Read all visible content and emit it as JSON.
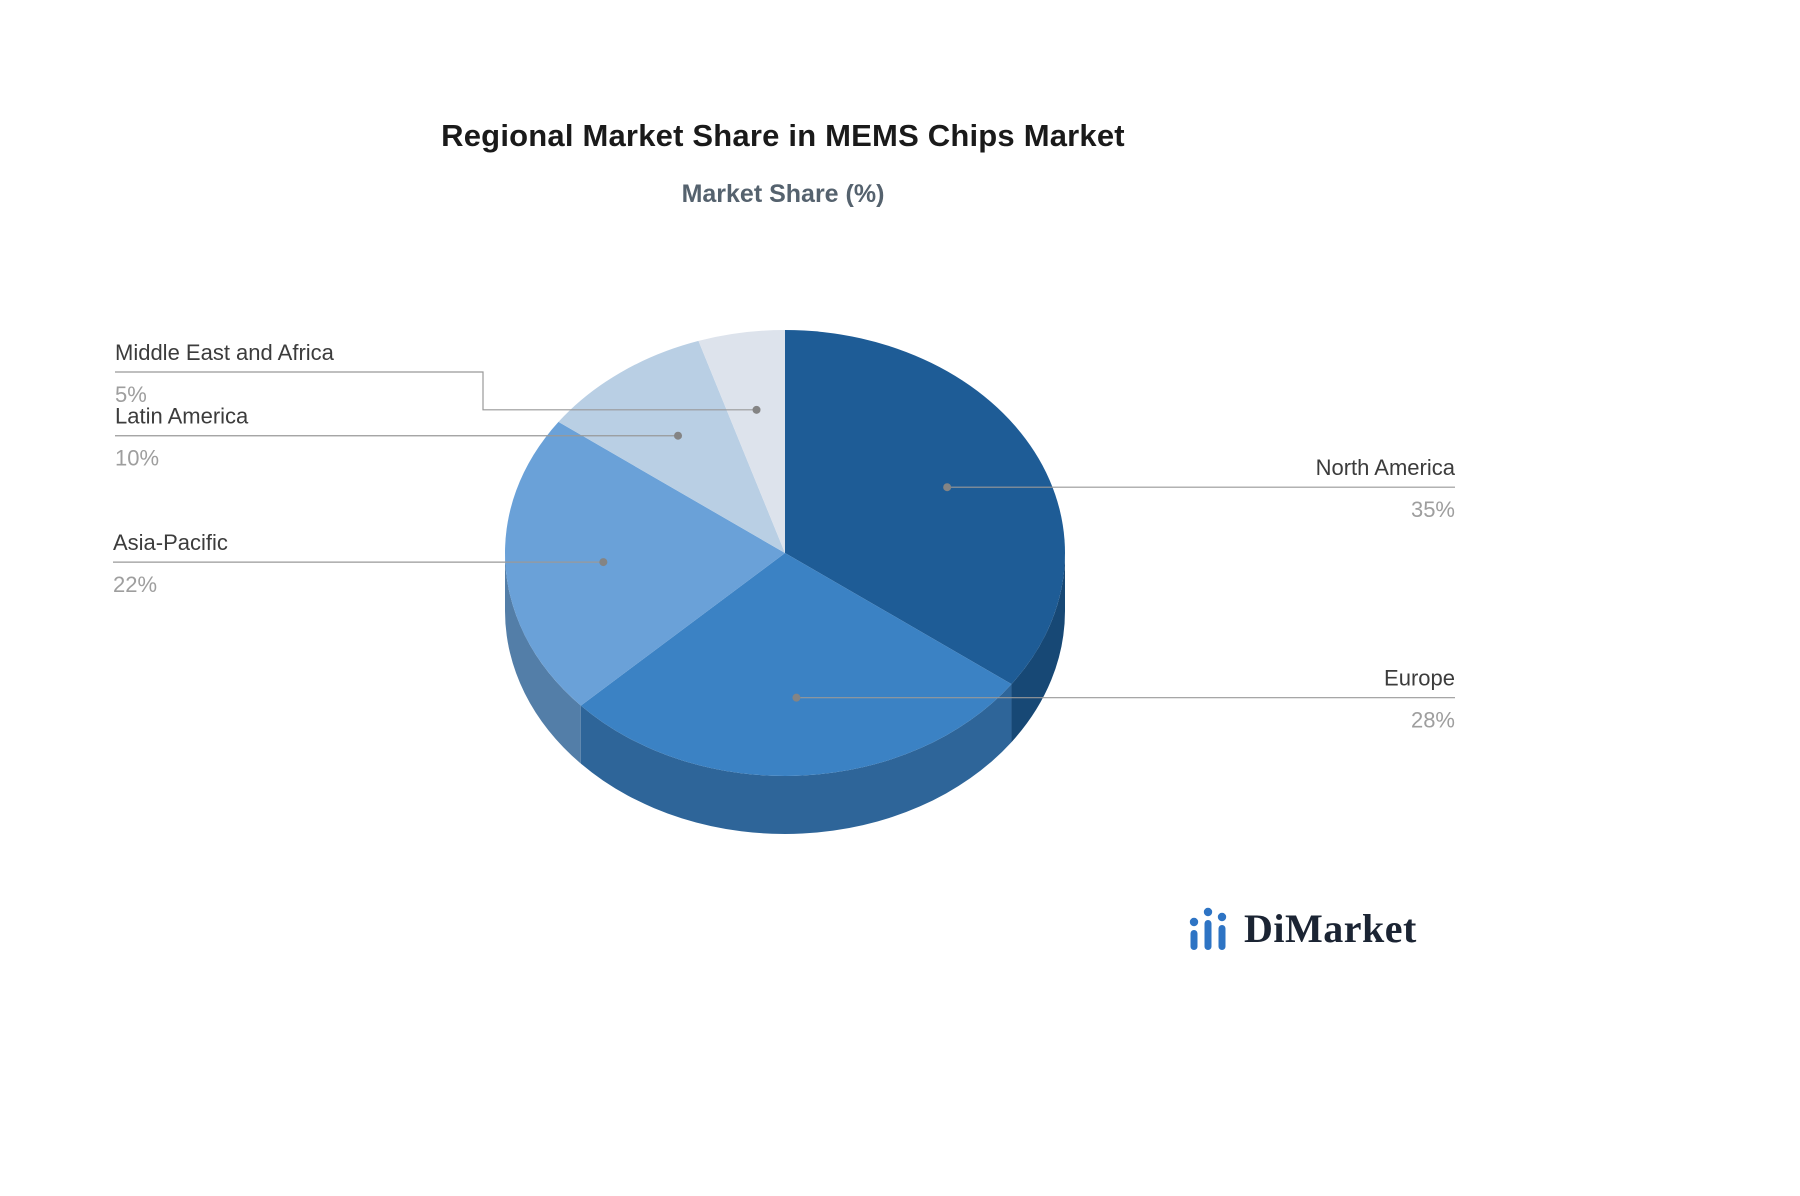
{
  "chart_data": {
    "type": "pie",
    "style": "3d",
    "title": "Regional Market Share in MEMS Chips Market",
    "subtitle": "Market Share (%)",
    "unit": "%",
    "categories": [
      "North America",
      "Europe",
      "Asia-Pacific",
      "Latin America",
      "Middle East and Africa"
    ],
    "values": [
      35,
      28,
      22,
      10,
      5
    ],
    "value_labels": [
      "35%",
      "28%",
      "22%",
      "10%",
      "5%"
    ],
    "colors": [
      "#1e5c96",
      "#3b82c4",
      "#6aa1d8",
      "#b9cfe4",
      "#dde3ec"
    ],
    "legend_position": "none",
    "leader_line_color": "#999999",
    "label_name_color": "#3c3c3c",
    "label_value_color": "#9e9e9e"
  },
  "branding": {
    "logo_text": "DiMarket",
    "logo_icon": "bar-chart-icon",
    "logo_icon_color": "#2e74c4",
    "logo_text_color": "#1b2433"
  }
}
